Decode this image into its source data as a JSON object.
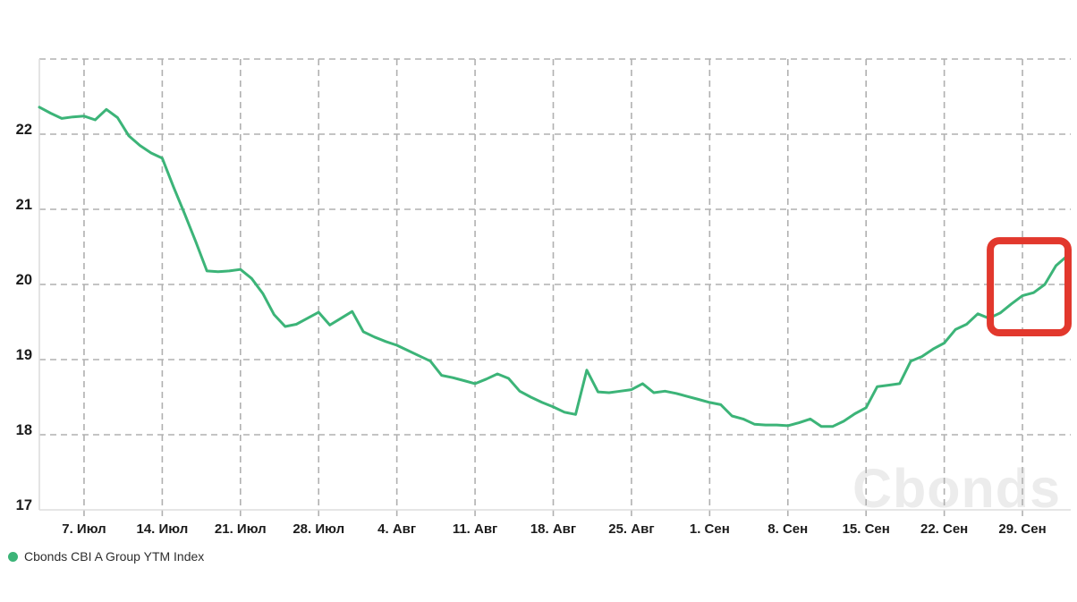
{
  "chart_data": {
    "type": "line",
    "title": "",
    "xlabel": "",
    "ylabel": "",
    "y_ticks": [
      17,
      18,
      19,
      20,
      21,
      22
    ],
    "ylim": [
      17,
      23
    ],
    "grid": "dashed",
    "legend_position": "bottom-left",
    "x_ticks": [
      {
        "label": "7. Июл",
        "index": 4
      },
      {
        "label": "14. Июл",
        "index": 11
      },
      {
        "label": "21. Июл",
        "index": 18
      },
      {
        "label": "28. Июл",
        "index": 25
      },
      {
        "label": "4. Авг",
        "index": 32
      },
      {
        "label": "11. Авг",
        "index": 39
      },
      {
        "label": "18. Авг",
        "index": 46
      },
      {
        "label": "25. Авг",
        "index": 53
      },
      {
        "label": "1. Сен",
        "index": 60
      },
      {
        "label": "8. Сен",
        "index": 67
      },
      {
        "label": "15. Сен",
        "index": 74
      },
      {
        "label": "22. Сен",
        "index": 81
      },
      {
        "label": "29. Сен",
        "index": 88
      }
    ],
    "series": [
      {
        "name": "Cbonds CBI A Group YTM Index",
        "color": "#3cb478",
        "values": [
          22.36,
          22.28,
          22.21,
          22.23,
          22.24,
          22.19,
          22.33,
          22.22,
          21.98,
          21.85,
          21.75,
          21.68,
          21.3,
          20.94,
          20.57,
          20.18,
          20.17,
          20.18,
          20.2,
          20.08,
          19.88,
          19.6,
          19.44,
          19.47,
          19.55,
          19.63,
          19.46,
          19.55,
          19.64,
          19.37,
          19.3,
          19.24,
          19.19,
          19.12,
          19.05,
          18.98,
          18.79,
          18.76,
          18.72,
          18.68,
          18.74,
          18.81,
          18.75,
          18.58,
          18.5,
          18.43,
          18.37,
          18.3,
          18.27,
          18.86,
          18.57,
          18.56,
          18.58,
          18.6,
          18.68,
          18.56,
          18.58,
          18.55,
          18.51,
          18.47,
          18.43,
          18.4,
          18.25,
          18.21,
          18.14,
          18.13,
          18.13,
          18.12,
          18.16,
          18.21,
          18.11,
          18.11,
          18.18,
          18.28,
          18.36,
          18.64,
          18.66,
          18.68,
          18.98,
          19.04,
          19.14,
          19.22,
          19.4,
          19.47,
          19.61,
          19.55,
          19.62,
          19.74,
          19.85,
          19.89,
          20.0,
          20.25,
          20.38
        ]
      }
    ],
    "highlight": {
      "shape": "rounded-rectangle",
      "color": "#e2382d",
      "x_range_days": [
        84.8,
        92.4
      ],
      "value_range": [
        19.31,
        20.63
      ]
    }
  },
  "legend": {
    "label": "Cbonds CBI A Group YTM Index",
    "marker_color": "#3cb478"
  },
  "watermark": {
    "text": "Cbonds",
    "color": "#ececec"
  }
}
